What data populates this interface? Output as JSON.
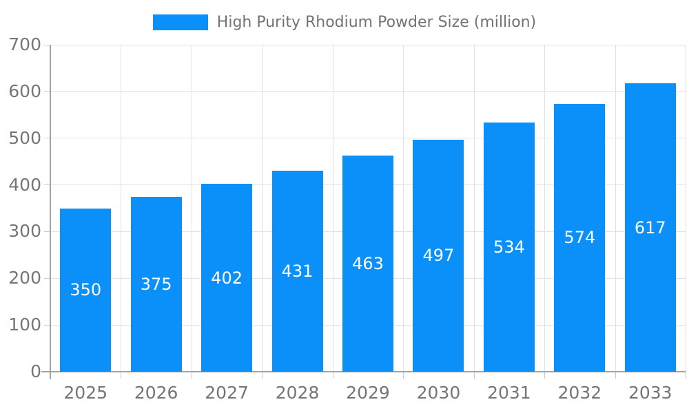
{
  "chart_data": {
    "type": "bar",
    "title": "High Purity Rhodium Powder Size (million)",
    "legend_position": "top",
    "categories": [
      "2025",
      "2026",
      "2027",
      "2028",
      "2029",
      "2030",
      "2031",
      "2032",
      "2033"
    ],
    "series": [
      {
        "name": "High Purity Rhodium Powder Size (million)",
        "values": [
          350,
          375,
          402,
          431,
          463,
          497,
          534,
          574,
          617
        ]
      }
    ],
    "xlabel": "",
    "ylabel": "",
    "ylim": [
      0,
      700
    ],
    "ytick_step": 100,
    "grid": true,
    "bar_labels_inside": true,
    "colors": {
      "bar": "#0a90f8",
      "bar_label": "#ffffff",
      "axis": "#a3a3a3",
      "grid": "#e2e2e2",
      "tick": "#c9c9c9",
      "tick_label": "#757575",
      "legend_text": "#737373",
      "background": "#ffffff"
    }
  }
}
